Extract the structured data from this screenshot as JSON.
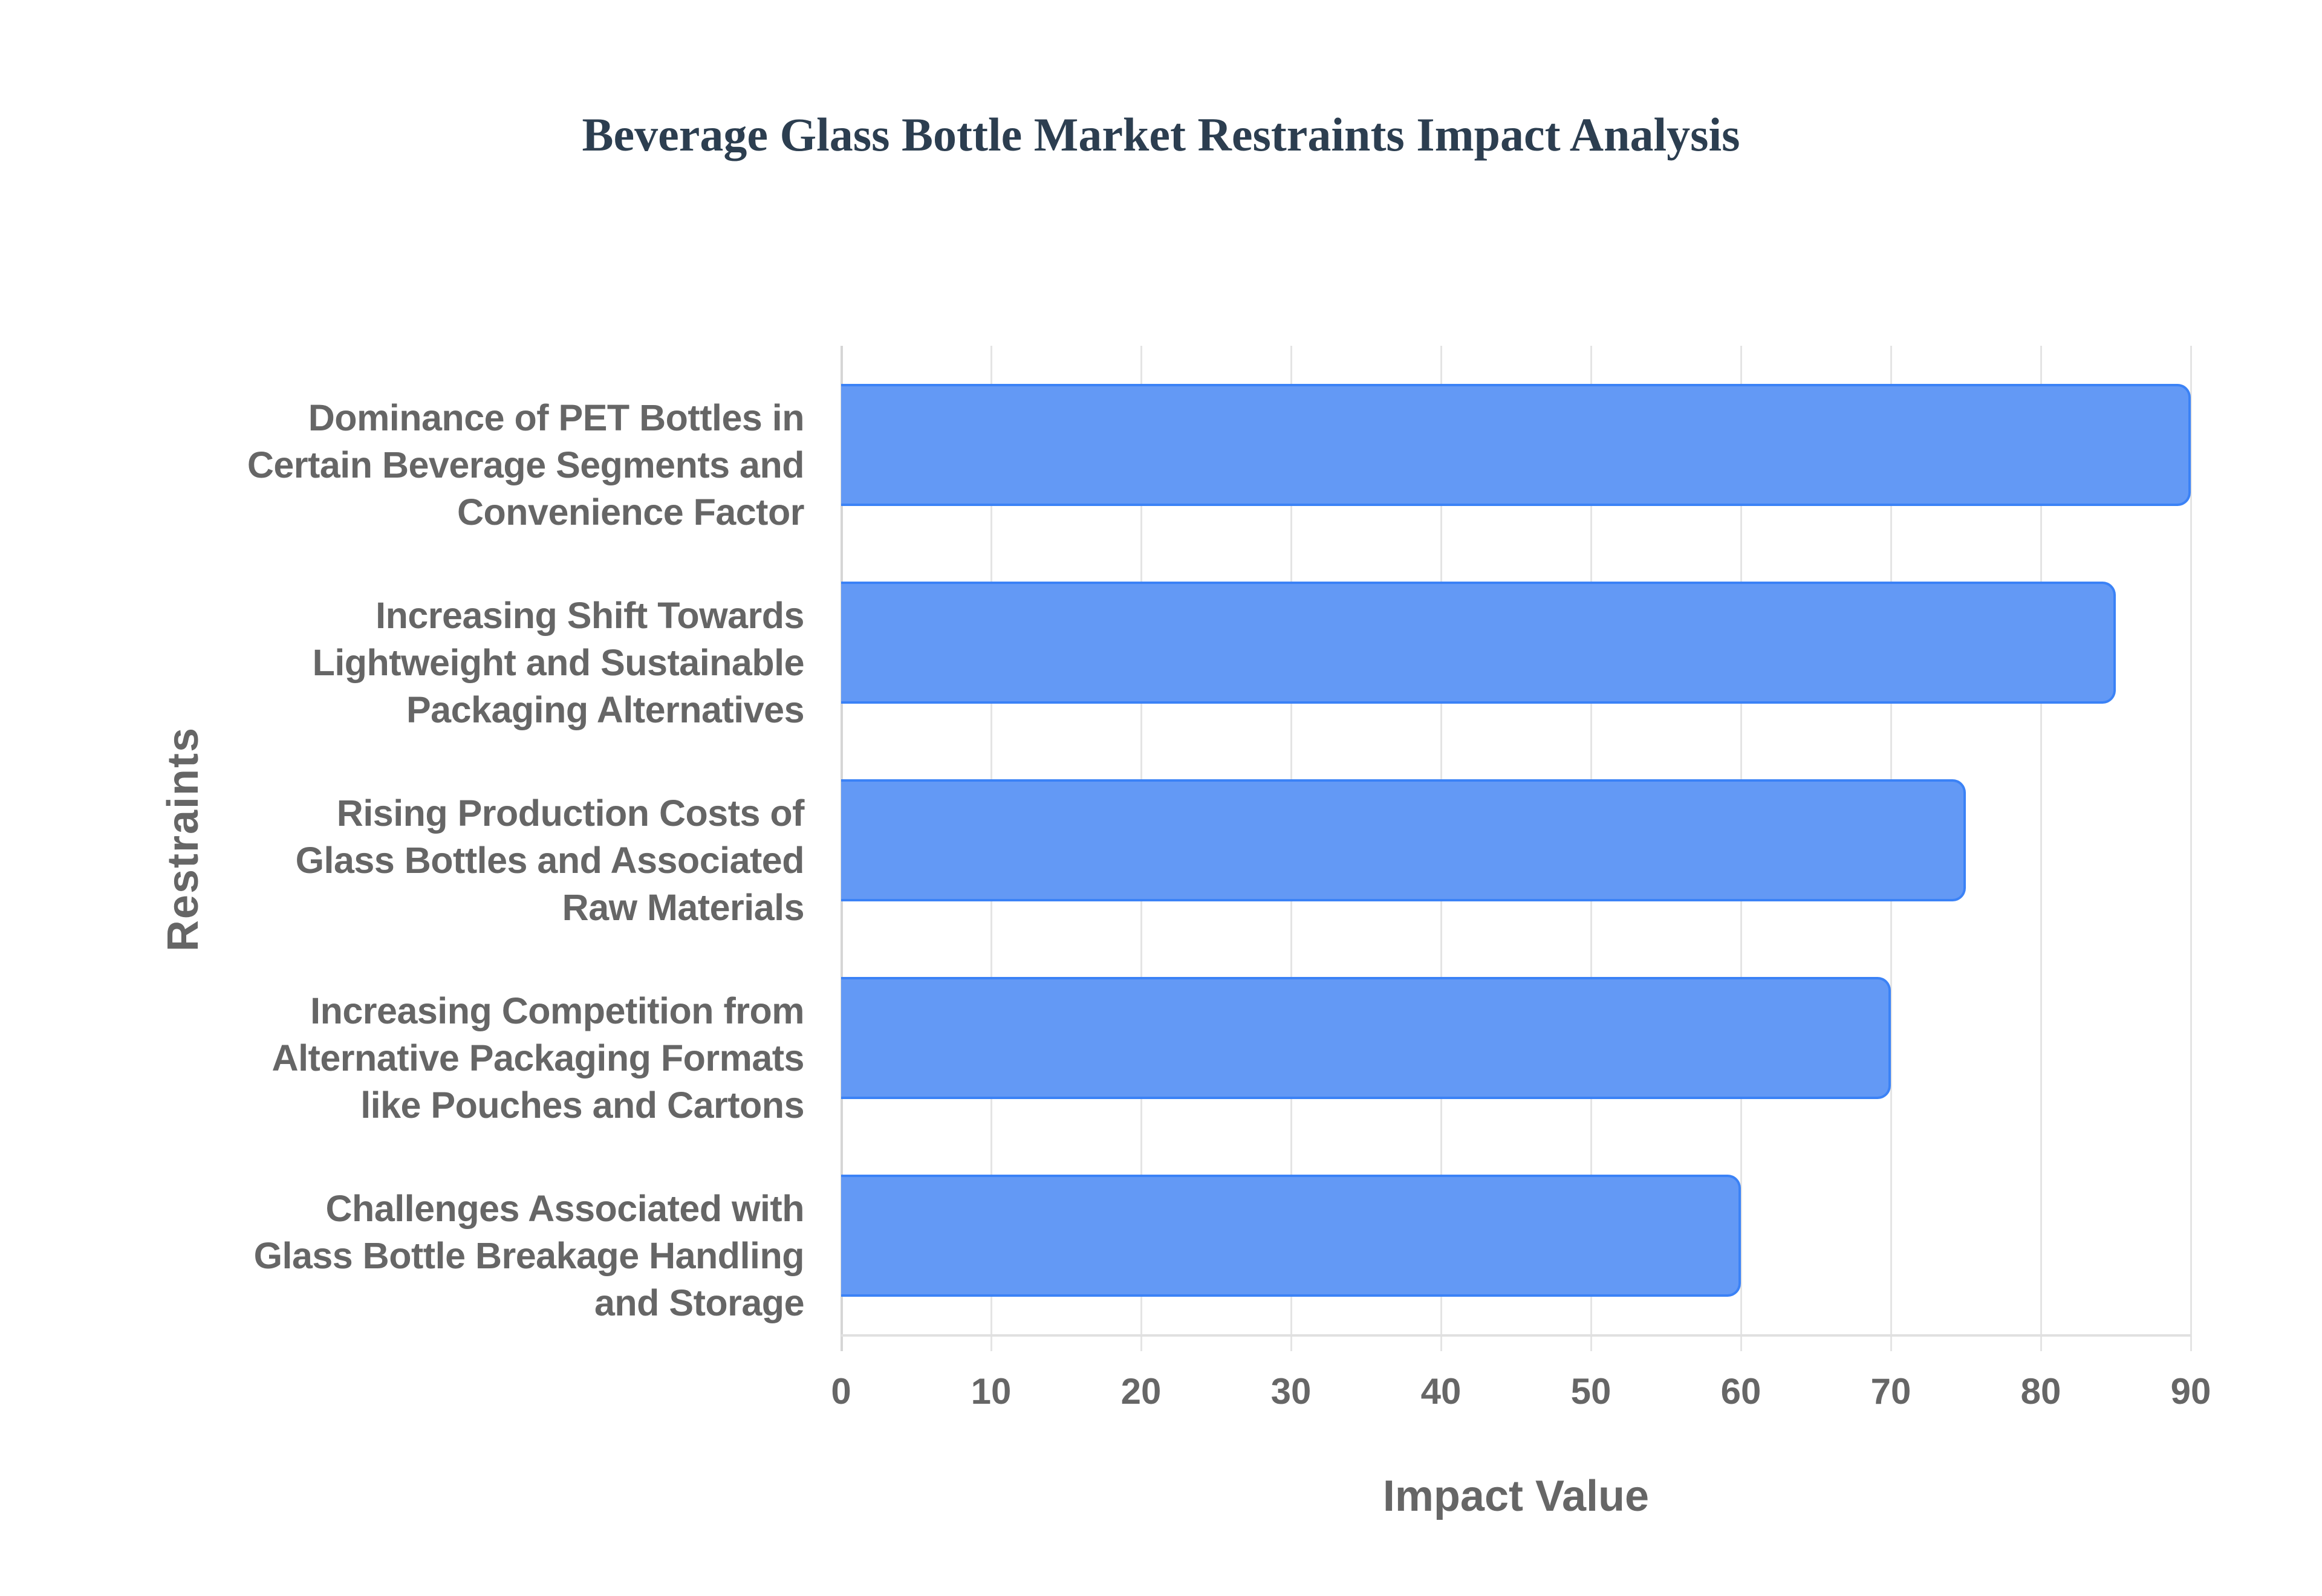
{
  "chart_data": {
    "type": "bar",
    "orientation": "horizontal",
    "title": "Beverage Glass Bottle Market Restraints Impact Analysis",
    "xlabel": "Impact Value",
    "ylabel": "Restraints",
    "xlim": [
      0,
      90
    ],
    "x_ticks": [
      "0",
      "10",
      "20",
      "30",
      "40",
      "50",
      "60",
      "70",
      "80",
      "90"
    ],
    "grid": {
      "vertical": true,
      "horizontal": false
    },
    "legend": null,
    "categories": [
      "Dominance of PET Bottles in Certain Beverage Segments and Convenience Factor",
      "Increasing Shift Towards Lightweight and Sustainable Packaging Alternatives",
      "Rising Production Costs of Glass Bottles and Associated Raw Materials",
      "Increasing Competition from Alternative Packaging Formats like Pouches and Cartons",
      "Challenges Associated with Glass Bottle Breakage Handling and Storage"
    ],
    "values": [
      90,
      85,
      75,
      70,
      60
    ],
    "series": [
      {
        "name": "Impact Value",
        "values": [
          90,
          85,
          75,
          70,
          60
        ],
        "color": "#3b82f6"
      }
    ],
    "category_label_lines": [
      [
        "Dominance of PET Bottles in",
        "Certain Beverage Segments and",
        "Convenience Factor"
      ],
      [
        "Increasing Shift Towards",
        "Lightweight and Sustainable",
        "Packaging Alternatives"
      ],
      [
        "Rising Production Costs of",
        "Glass Bottles and Associated",
        "Raw Materials"
      ],
      [
        "Increasing Competition from",
        "Alternative Packaging Formats",
        "like Pouches and Cartons"
      ],
      [
        "Challenges Associated with",
        "Glass Bottle Breakage Handling",
        "and Storage"
      ]
    ]
  },
  "colors": {
    "bar_fill": "#6399f5",
    "bar_border": "#3b82f6",
    "title": "#2c3e50",
    "axis_text": "#666666",
    "grid": "#e4e4e4"
  }
}
